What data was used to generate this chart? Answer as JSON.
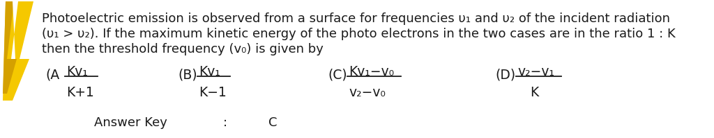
{
  "background_color": "#ffffff",
  "text_color": "#1a1a1a",
  "main_text_line1": "Photoelectric emission is observed from a surface for frequencies υ₁ and υ₂ of the incident radiation",
  "main_text_line2": "(υ₁ > υ₂). If the maximum kinetic energy of the photo electrons in the two cases are in the ratio 1 : K",
  "main_text_line3": "then the threshold frequency (v₀) is given by",
  "option_A_label": "(A",
  "option_A_num": "Kv₁",
  "option_A_den": "K+1",
  "option_B_label": "(B)",
  "option_B_num": "Kv₁",
  "option_B_den": "K−1",
  "option_C_label": "(C)",
  "option_C_num": "Kv₁−v₀",
  "option_C_den": "v₂−v₀",
  "option_D_label": "(D)",
  "option_D_num": "v₂−v₁",
  "option_D_den": "K",
  "answer_label": "Answer Key",
  "answer_sep": ":",
  "answer_val": "C",
  "font_size_main": 13.0,
  "font_size_options": 13.5,
  "font_size_answer": 13.0,
  "deco_color1": "#f5c800",
  "deco_color2": "#d4a000"
}
